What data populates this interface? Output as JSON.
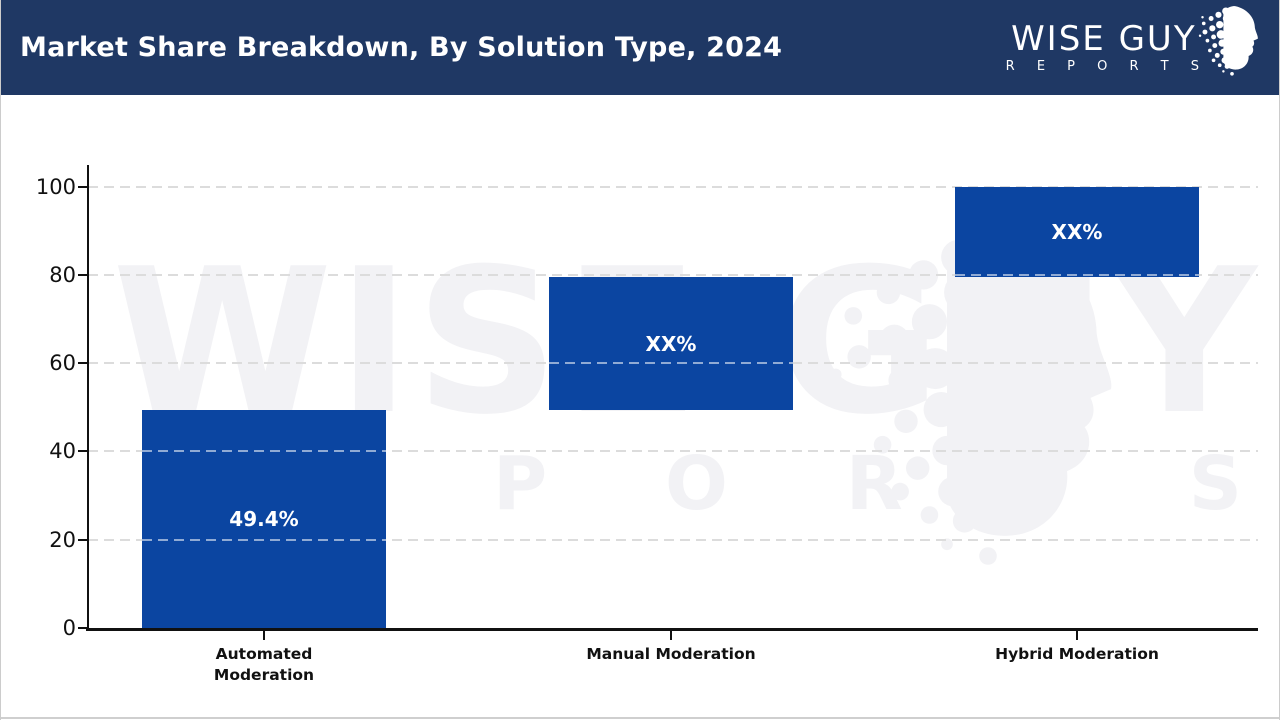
{
  "header": {
    "title": "Market Share Breakdown, By Solution Type, 2024",
    "background_color": "#1F3864",
    "logo": {
      "line1": "WISE GUY",
      "line2": "R E P O R T S"
    }
  },
  "watermark": {
    "line1": "WISE GUY",
    "line2": "R E P O R T S"
  },
  "chart_data": {
    "type": "bar",
    "subtype": "waterfall",
    "title": "Market Share Breakdown, By Solution Type, 2024",
    "categories": [
      "Automated Moderation",
      "Manual Moderation",
      "Hybrid Moderation"
    ],
    "category_lines": [
      [
        "Automated",
        "Moderation"
      ],
      [
        "Manual Moderation"
      ],
      [
        "Hybrid Moderation"
      ]
    ],
    "segments": [
      {
        "category": "Automated Moderation",
        "start": 0,
        "end": 49.4,
        "label": "49.4%"
      },
      {
        "category": "Manual Moderation",
        "start": 49.4,
        "end": 79.4,
        "label": "XX%"
      },
      {
        "category": "Hybrid Moderation",
        "start": 79.4,
        "end": 100,
        "label": "XX%"
      }
    ],
    "ylabel": "",
    "xlabel": "",
    "ylim": [
      0,
      100
    ],
    "yticks": [
      0,
      20,
      40,
      60,
      80,
      100
    ],
    "grid": "horizontal dashed",
    "legend": "none",
    "bar_color": "#0B45A1",
    "bar_label_color": "#ffffff"
  }
}
